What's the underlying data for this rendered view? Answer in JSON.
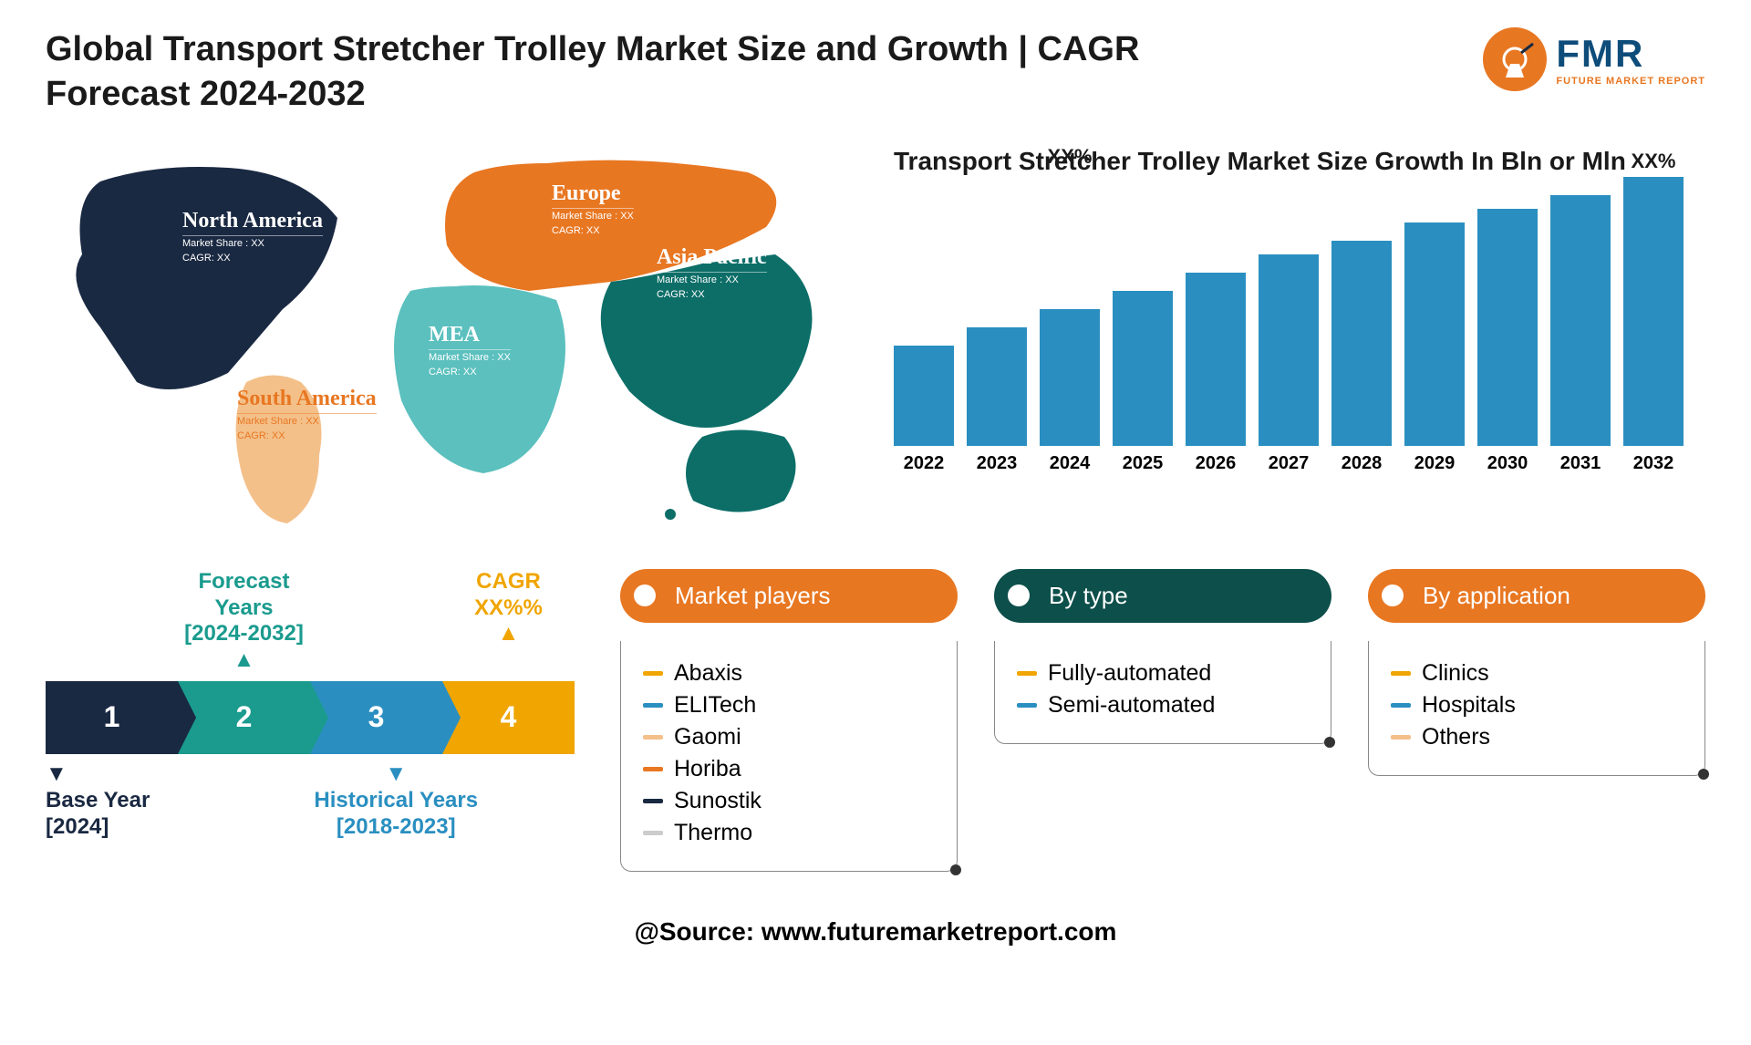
{
  "title": "Global Transport Stretcher Trolley Market Size and Growth | CAGR Forecast 2024-2032",
  "logo": {
    "fmr": "FMR",
    "sub": "FUTURE MARKET REPORT"
  },
  "colors": {
    "navy": "#1a2942",
    "orange": "#e87722",
    "teal_light": "#5bc0be",
    "teal_dark": "#0d6e68",
    "blue": "#2a8fc0",
    "yellow": "#f0a500",
    "teal_med": "#1a9b8e",
    "dark_teal_pill": "#0d4f4a"
  },
  "map": {
    "regions": {
      "na": {
        "name": "North America",
        "share": "Market Share : XX",
        "cagr": "CAGR: XX",
        "fill": "#1a2942"
      },
      "sa": {
        "name": "South America",
        "share": "Market Share : XX",
        "cagr": "CAGR: XX",
        "fill": "#f4c08a"
      },
      "eu": {
        "name": "Europe",
        "share": "Market Share : XX",
        "cagr": "CAGR: XX",
        "fill": "#e87722"
      },
      "mea": {
        "name": "MEA",
        "share": "Market Share : XX",
        "cagr": "CAGR: XX",
        "fill": "#5bc0be"
      },
      "ap": {
        "name": "Asia Pacific",
        "share": "Market Share : XX",
        "cagr": "CAGR: XX",
        "fill": "#0d6e68"
      }
    }
  },
  "chart": {
    "title": "Transport Stretcher Trolley Market Size Growth In Bln or Mln",
    "type": "bar",
    "years": [
      "2022",
      "2023",
      "2024",
      "2025",
      "2026",
      "2027",
      "2028",
      "2029",
      "2030",
      "2031",
      "2032"
    ],
    "heights": [
      110,
      130,
      150,
      170,
      190,
      210,
      225,
      245,
      260,
      275,
      295
    ],
    "bar_color": "#2a8fc0",
    "annot_2024": "XX%",
    "annot_2032": "XX%"
  },
  "timeline": {
    "forecast_label": "Forecast Years",
    "forecast_range": "[2024-2032]",
    "cagr_label": "CAGR",
    "cagr_value": "XX%%",
    "base_label": "Base Year",
    "base_value": "[2024]",
    "hist_label": "Historical Years",
    "hist_range": "[2018-2023]",
    "steps": [
      "1",
      "2",
      "3",
      "4"
    ],
    "step_colors": [
      "#1a2942",
      "#1a9b8e",
      "#2a8fc0",
      "#f0a500"
    ]
  },
  "panels": {
    "market_players": {
      "title": "Market players",
      "pill_color": "#e87722",
      "items": [
        {
          "label": "Abaxis",
          "color": "#f0a500"
        },
        {
          "label": "ELITech",
          "color": "#2a8fc0"
        },
        {
          "label": "Gaomi",
          "color": "#f4c08a"
        },
        {
          "label": "Horiba",
          "color": "#e87722"
        },
        {
          "label": "Sunostik",
          "color": "#1a2942"
        },
        {
          "label": "Thermo",
          "color": "#cccccc"
        }
      ]
    },
    "by_type": {
      "title": "By type",
      "pill_color": "#0d4f4a",
      "items": [
        {
          "label": "Fully-automated",
          "color": "#f0a500"
        },
        {
          "label": "Semi-automated",
          "color": "#2a8fc0"
        }
      ]
    },
    "by_application": {
      "title": "By application",
      "pill_color": "#e87722",
      "items": [
        {
          "label": "Clinics",
          "color": "#f0a500"
        },
        {
          "label": "Hospitals",
          "color": "#2a8fc0"
        },
        {
          "label": "Others",
          "color": "#f4c08a"
        }
      ]
    }
  },
  "source": "@Source: www.futuremarketreport.com"
}
